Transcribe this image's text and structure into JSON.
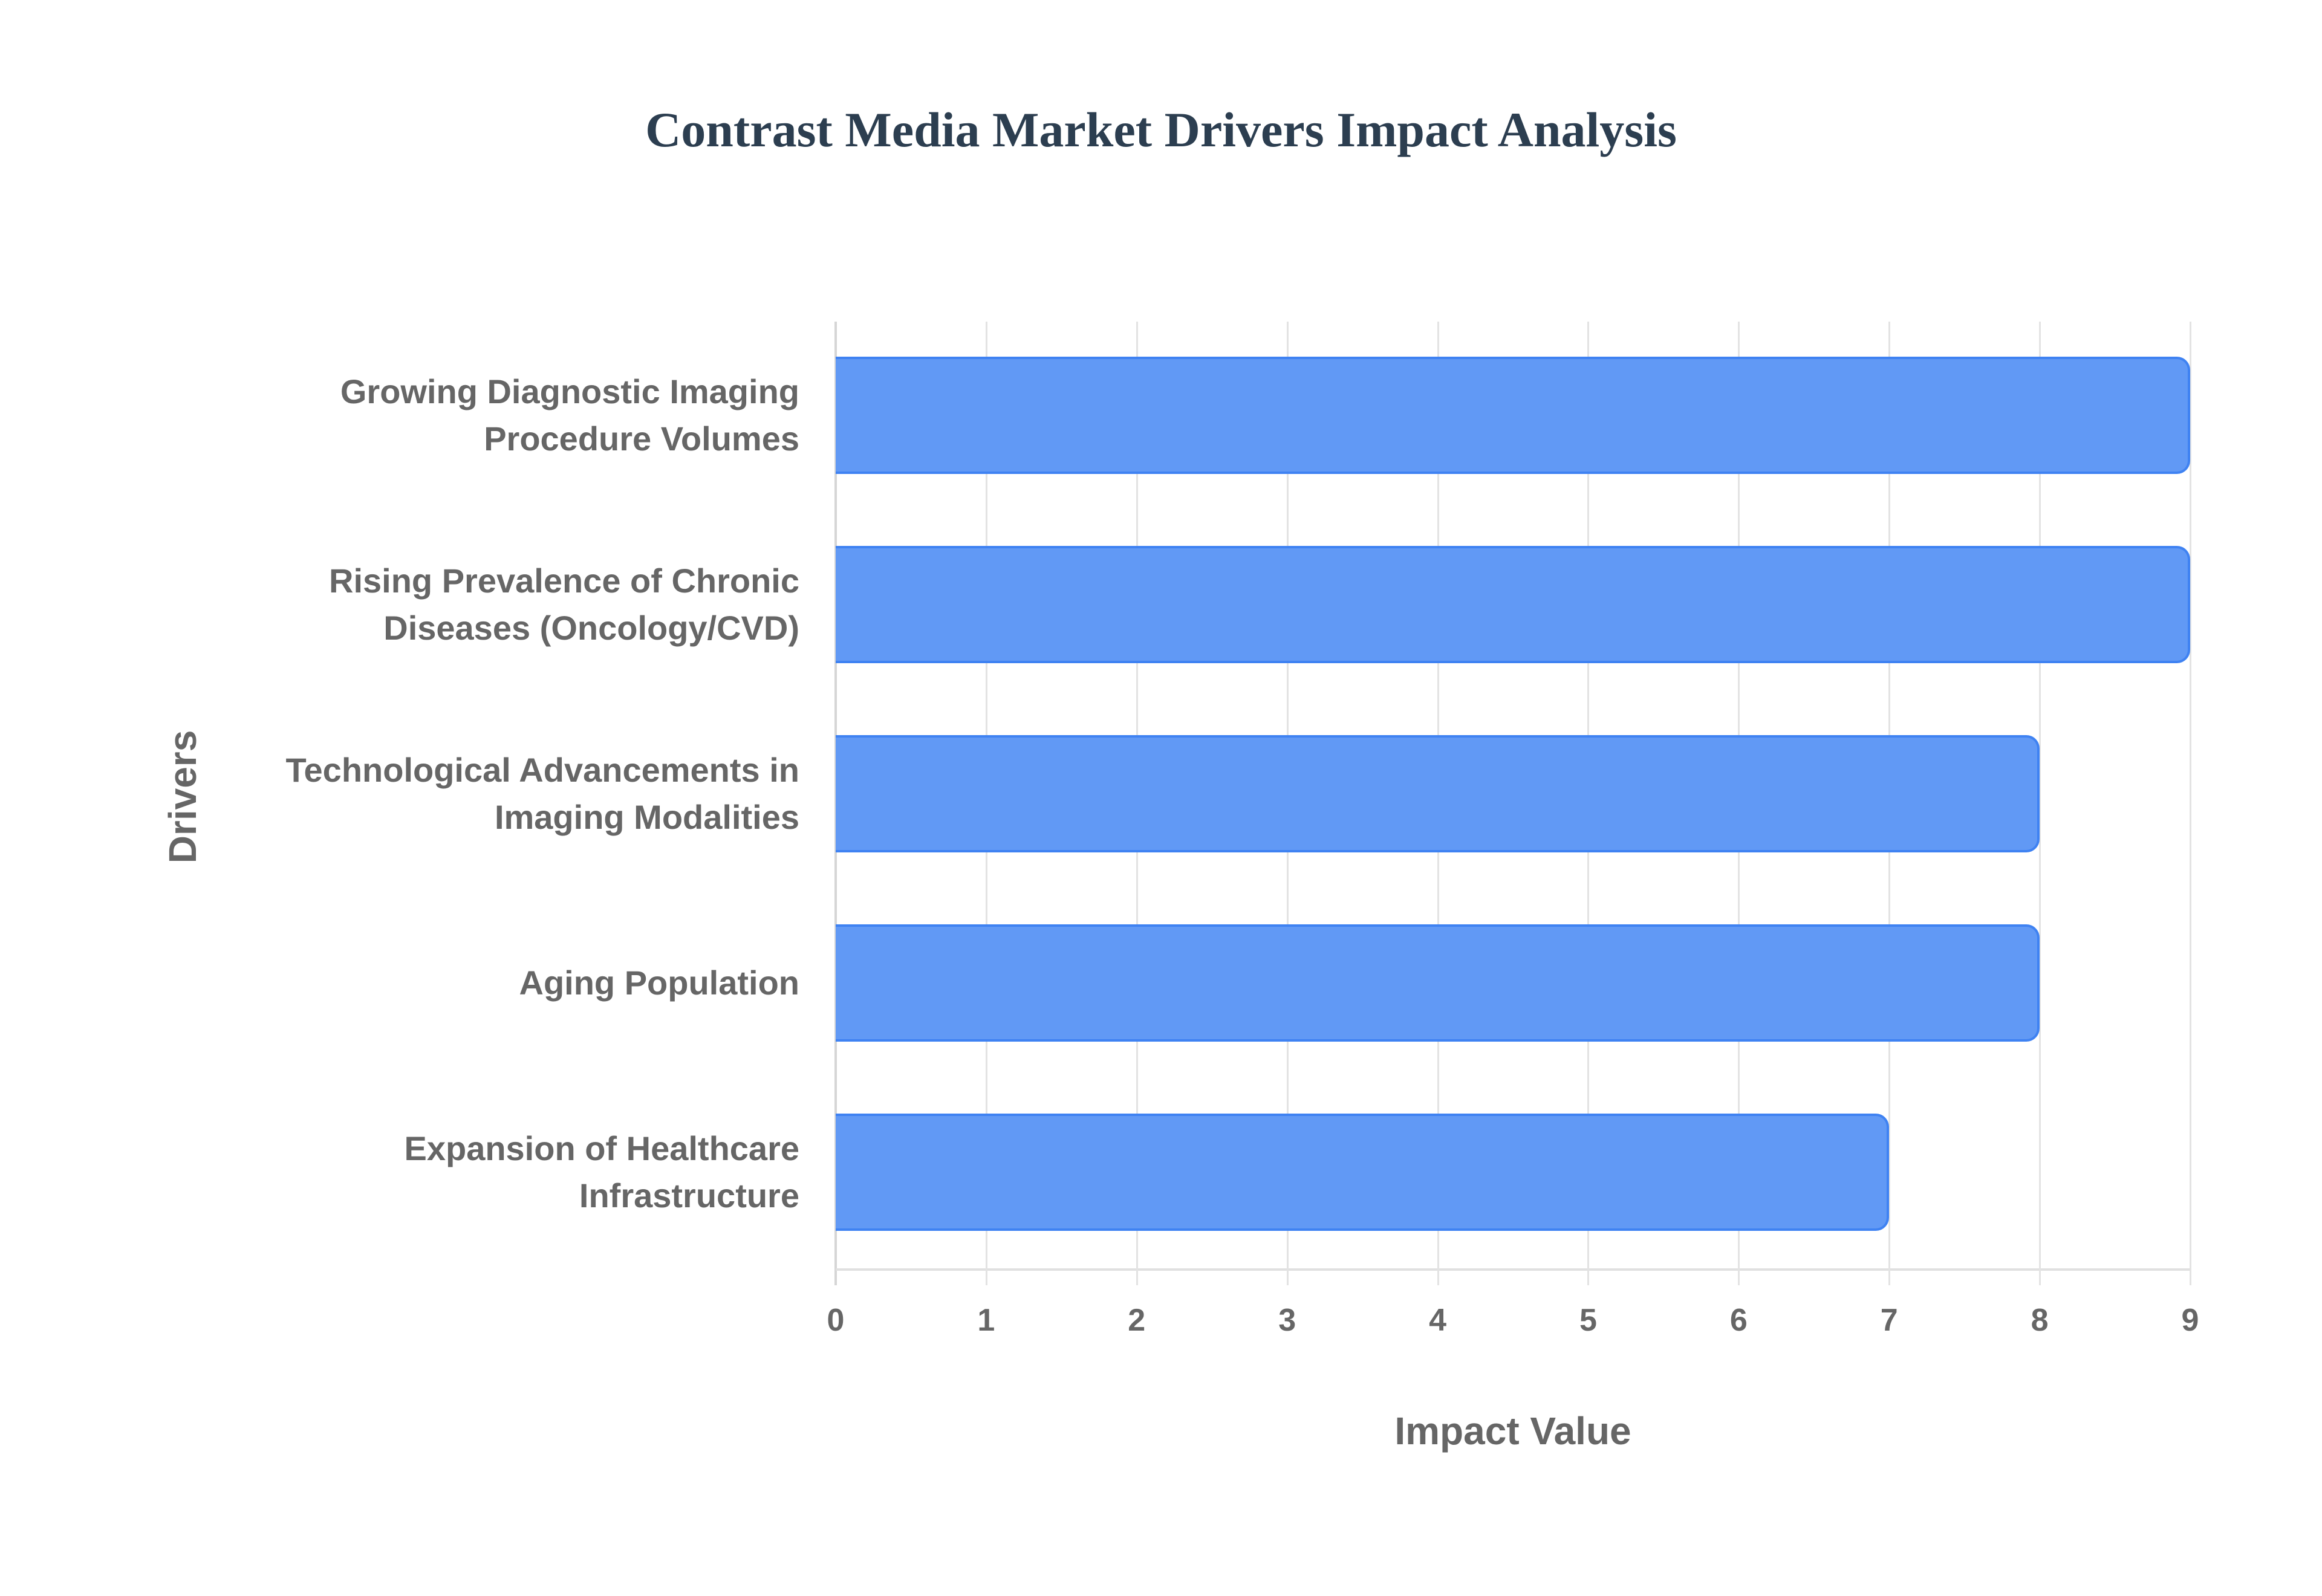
{
  "chart_data": {
    "type": "bar",
    "orientation": "horizontal",
    "title": "Contrast Media Market Drivers Impact Analysis",
    "xlabel": "Impact Value",
    "ylabel": "Drivers",
    "categories": [
      [
        "Growing Diagnostic Imaging",
        "Procedure Volumes"
      ],
      [
        "Rising Prevalence of Chronic",
        "Diseases (Oncology/CVD)"
      ],
      [
        "Technological Advancements in",
        "Imaging Modalities"
      ],
      [
        "Aging Population"
      ],
      [
        "Expansion of Healthcare",
        "Infrastructure"
      ]
    ],
    "category_names": [
      "Growing Diagnostic Imaging Procedure Volumes",
      "Rising Prevalence of Chronic Diseases (Oncology/CVD)",
      "Technological Advancements in Imaging Modalities",
      "Aging Population",
      "Expansion of Healthcare Infrastructure"
    ],
    "values": [
      9,
      9,
      8,
      8,
      7
    ],
    "xlim": [
      0,
      9
    ],
    "x_ticks": [
      "0",
      "1",
      "2",
      "3",
      "4",
      "5",
      "6",
      "7",
      "8",
      "9"
    ],
    "grid": true,
    "legend": "none",
    "colors": {
      "bar_fill": "#6199f5",
      "bar_border": "#3f82f2",
      "title": "#2c3e50",
      "text": "#666666",
      "grid": "#e3e3e3"
    }
  }
}
